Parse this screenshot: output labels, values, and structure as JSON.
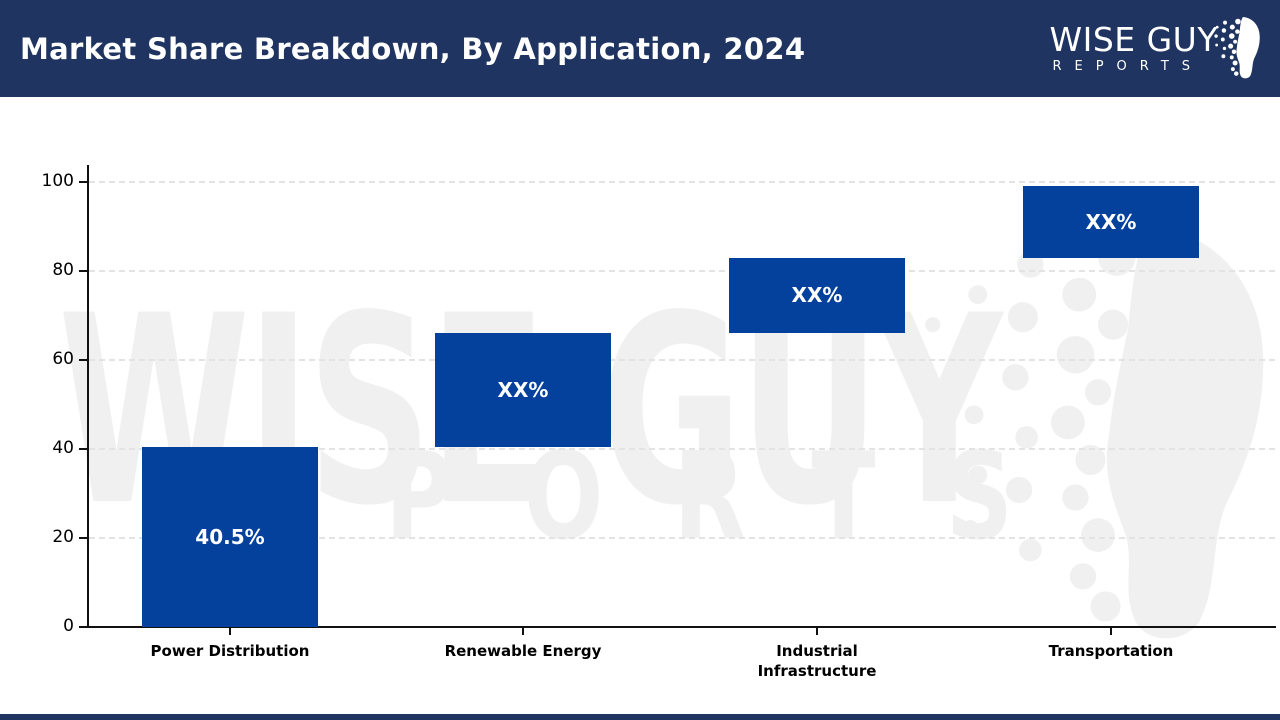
{
  "header": {
    "title": "Market Share Breakdown, By Application, 2024"
  },
  "logo": {
    "line1": "WISE GUY",
    "line2": "REPORTS"
  },
  "watermark": {
    "line1": "WISE GUY",
    "line2": "PORTS"
  },
  "colors": {
    "header_navy": "#1f3461",
    "bar_blue": "#04419c",
    "grid_gray": "#e3e3e3",
    "watermark_gray": "#f0f0f0"
  },
  "chart_data": {
    "type": "bar",
    "subtype": "waterfall",
    "title": "Market Share Breakdown, By Application, 2024",
    "xlabel": "",
    "ylabel": "",
    "ylim": [
      0,
      100
    ],
    "yticks": [
      0,
      20,
      40,
      60,
      80,
      100
    ],
    "grid": "dashed horizontal",
    "legend": "none",
    "bar_color": "#04419c",
    "categories": [
      "Power Distribution",
      "Renewable Energy",
      "Industrial Infrastructure",
      "Transportation"
    ],
    "bars": [
      {
        "category": "Power Distribution",
        "start": 0,
        "end": 40.5,
        "segment_value": 40.5,
        "value_label": "40.5%"
      },
      {
        "category": "Renewable Energy",
        "start": 40.5,
        "end": 66,
        "segment_value": 25.5,
        "value_label": "XX%"
      },
      {
        "category": "Industrial Infrastructure",
        "start": 66,
        "end": 83,
        "segment_value": 17,
        "value_label": "XX%"
      },
      {
        "category": "Transportation",
        "start": 83,
        "end": 99,
        "segment_value": 16,
        "value_label": "XX%"
      }
    ]
  }
}
